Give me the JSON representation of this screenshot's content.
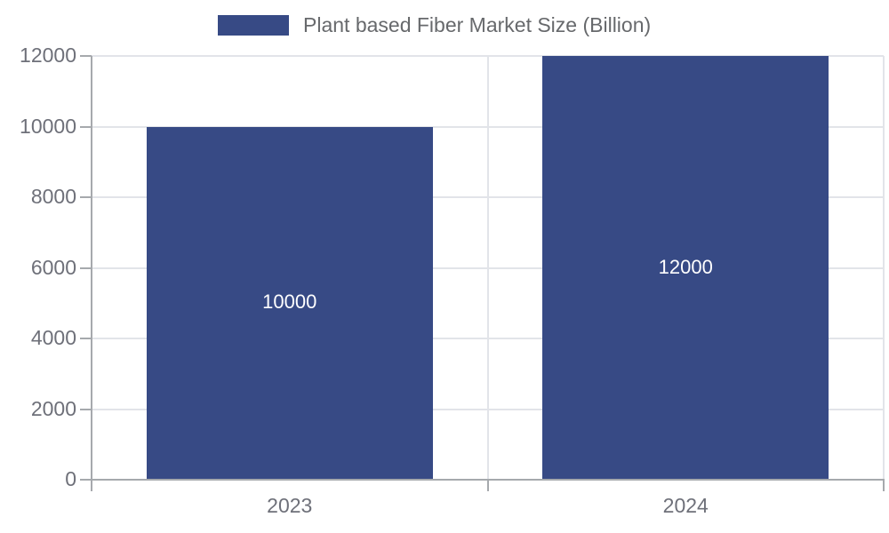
{
  "legend": {
    "label": "Plant based Fiber Market Size (Billion)"
  },
  "chart_data": {
    "type": "bar",
    "title": "Plant based Fiber Market Size (Billion)",
    "categories": [
      "2023",
      "2024"
    ],
    "series": [
      {
        "name": "Plant based Fiber Market Size (Billion)",
        "values": [
          10000,
          12000
        ]
      }
    ],
    "bar_value_labels": [
      "10000",
      "12000"
    ],
    "ylabel": "",
    "xlabel": "",
    "ylim": [
      0,
      12000
    ],
    "yticks": [
      0,
      2000,
      4000,
      6000,
      8000,
      10000,
      12000
    ],
    "grid": true,
    "legend_position": "top-center",
    "colors": {
      "bar": "#374A85",
      "bar_label": "#FFFFFF",
      "grid_line": "#E2E4E9",
      "axis_line": "#A6A9AD",
      "tick_label": "#6E7079",
      "legend_text": "#67696C"
    }
  }
}
